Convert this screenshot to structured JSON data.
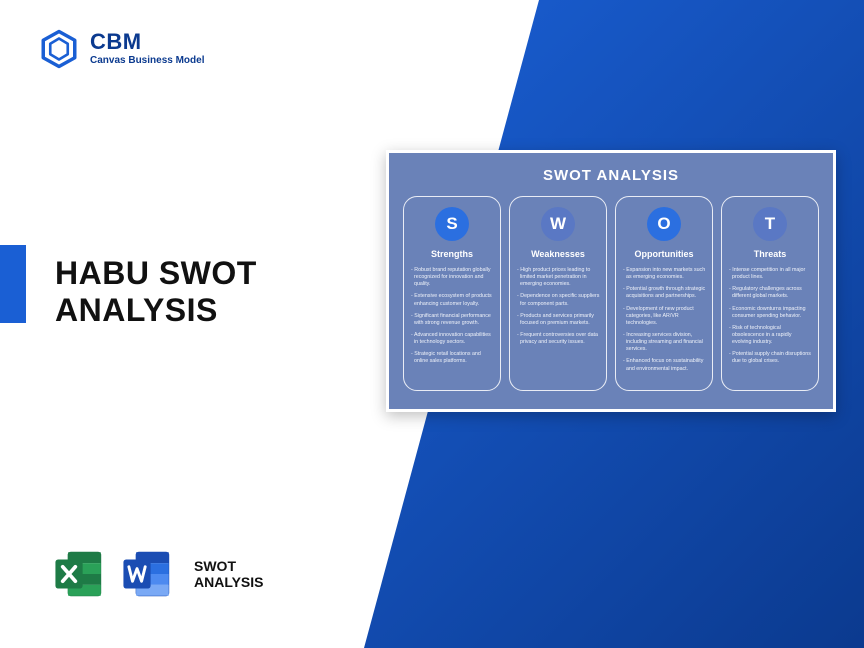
{
  "brand": {
    "name": "CBM",
    "tagline": "Canvas Business Model",
    "logo_color": "#1a5fd4"
  },
  "title": {
    "line1": "HABU SWOT",
    "line2": "ANALYSIS"
  },
  "accent_color": "#1a5fd4",
  "bottom": {
    "excel_colors": {
      "back": "#1e7b46",
      "front": "#2aa158",
      "sheet": "#ffffff"
    },
    "word_colors": {
      "back": "#1b4db3",
      "front": "#2b6fe0",
      "sheet": "#ffffff"
    },
    "label_line1": "SWOT",
    "label_line2": "ANALYSIS"
  },
  "swot": {
    "card_title": "SWOT ANALYSIS",
    "card_bg": "#6a82b8",
    "columns": [
      {
        "letter": "S",
        "title": "Strengths",
        "circle_color": "#2b6fe0",
        "items": [
          "Robust brand reputation globally recognized for innovation and quality.",
          "Extensive ecosystem of products enhancing customer loyalty.",
          "Significant financial performance with strong revenue growth.",
          "Advanced innovation capabilities in technology sectors.",
          "Strategic retail locations and online sales platforms."
        ]
      },
      {
        "letter": "W",
        "title": "Weaknesses",
        "circle_color": "#5a78c4",
        "items": [
          "High product prices leading to limited market penetration in emerging economies.",
          "Dependence on specific suppliers for component parts.",
          "Products and services primarily focused on premium markets.",
          "Frequent controversies over data privacy and security issues."
        ]
      },
      {
        "letter": "O",
        "title": "Opportunities",
        "circle_color": "#2b6fe0",
        "items": [
          "Expansion into new markets such as emerging economies.",
          "Potential growth through strategic acquisitions and partnerships.",
          "Development of new product categories, like AR/VR technologies.",
          "Increasing services division, including streaming and financial services.",
          "Enhanced focus on sustainability and environmental impact."
        ]
      },
      {
        "letter": "T",
        "title": "Threats",
        "circle_color": "#5a78c4",
        "items": [
          "Intense competition in all major product lines.",
          "Regulatory challenges across different global markets.",
          "Economic downturns impacting consumer spending behavior.",
          "Risk of technological obsolescence in a rapidly evolving industry.",
          "Potential supply chain disruptions due to global crises."
        ]
      }
    ]
  }
}
